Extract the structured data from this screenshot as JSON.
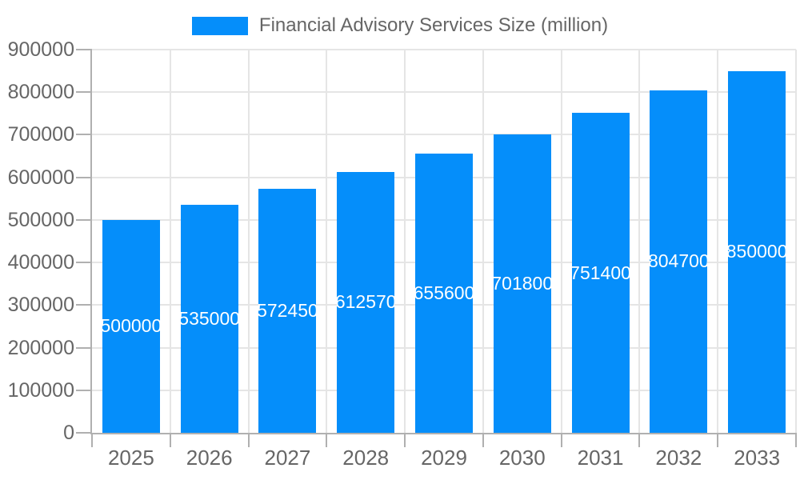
{
  "legend": {
    "label": "Financial Advisory Services Size (million)"
  },
  "chart_data": {
    "type": "bar",
    "title": "",
    "categories": [
      "2025",
      "2026",
      "2027",
      "2028",
      "2029",
      "2030",
      "2031",
      "2032",
      "2033"
    ],
    "series": [
      {
        "name": "Financial Advisory Services Size (million)",
        "values": [
          500000,
          535000,
          572450,
          612570,
          655600,
          701800,
          751400,
          804700,
          850000
        ]
      }
    ],
    "data_labels": [
      "500000",
      "535000",
      "572450",
      "612570",
      "655600",
      "701800",
      "751400",
      "804700",
      "850000"
    ],
    "xlabel": "",
    "ylabel": "",
    "ylim": [
      0,
      900000
    ],
    "ytick_step": 100000,
    "y_tick_labels": [
      "0",
      "100000",
      "200000",
      "300000",
      "400000",
      "500000",
      "600000",
      "700000",
      "800000",
      "900000"
    ],
    "grid": true,
    "legend_position": "top",
    "colors": {
      "bar": "#058efa",
      "axis": "#b0b0b0",
      "grid": "#e5e5e5",
      "tick_text": "#666666",
      "data_label": "#ffffff"
    }
  }
}
